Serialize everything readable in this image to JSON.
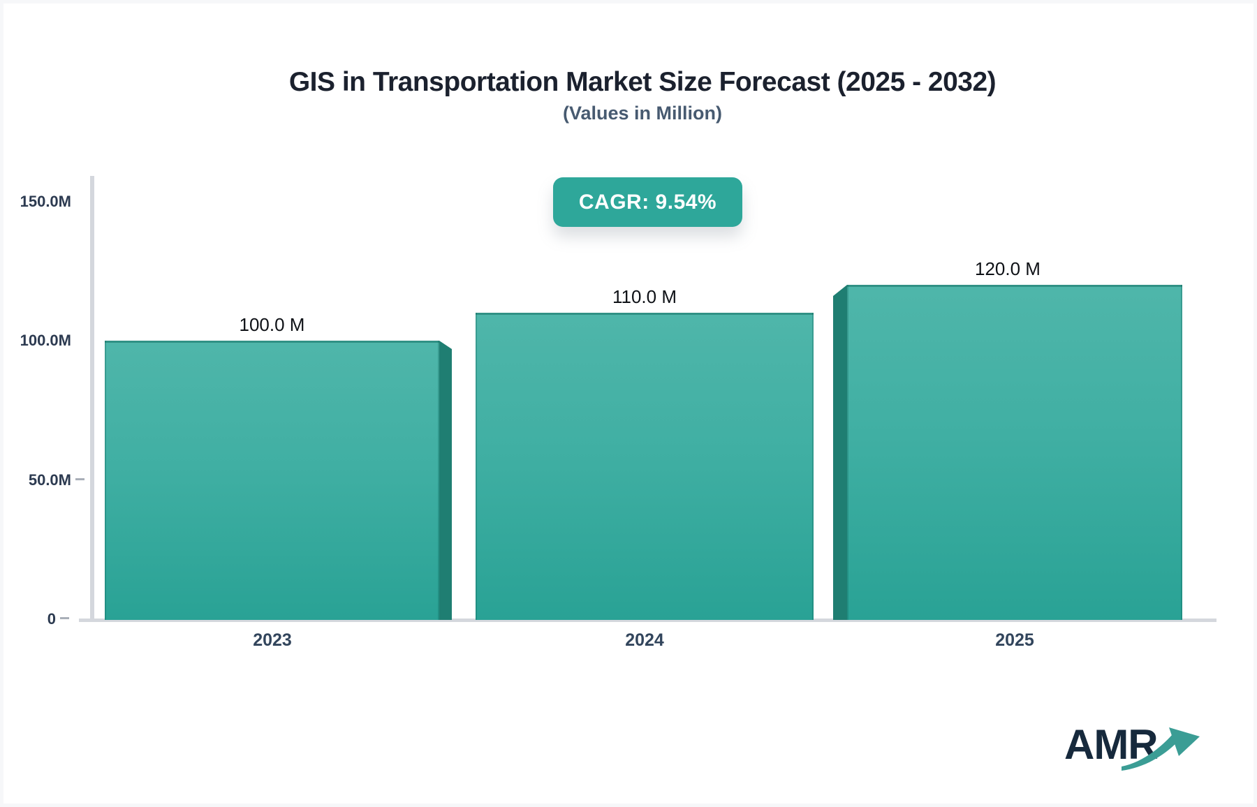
{
  "header": {
    "title": "GIS in Transportation Market Size Forecast (2025 - 2032)",
    "subtitle": "(Values in Million)",
    "cagr_label": "CAGR: 9.54%"
  },
  "logo": {
    "text": "AMR",
    "arrow_icon": "trend-up-arrow"
  },
  "colors": {
    "accent_teal": "#2EA79A",
    "bar_gradient_top": "#4FB6AA",
    "bar_gradient_bottom": "#29A295",
    "bar_side": "#1F7E72",
    "axis_line": "#D4D7DD",
    "tick_dash": "#A9AFB8",
    "title_text": "#1B212E",
    "subtitle_text": "#475A70",
    "label_text": "#0E1116",
    "tick_text": "#2C3A50",
    "xtick_text": "#32455C",
    "logo_navy": "#16293C",
    "logo_arrow": "#3B9D95"
  },
  "chart_data": {
    "type": "bar",
    "title": "GIS in Transportation Market Size Forecast (2025 - 2032)",
    "subtitle": "(Values in Million)",
    "cagr": "9.54%",
    "categories": [
      "2023",
      "2024",
      "2025"
    ],
    "values": [
      100.0,
      110.0,
      120.0
    ],
    "value_unit": "Million",
    "bar_labels": [
      "100.0 M",
      "110.0 M",
      "120.0 M"
    ],
    "y_axis": {
      "range": [
        0,
        150
      ],
      "ticks": [
        {
          "label": "150.0M",
          "value": 150
        },
        {
          "label": "100.0M",
          "value": 100
        },
        {
          "label": "50.0M",
          "value": 50
        },
        {
          "label": "0",
          "value": 0
        }
      ]
    },
    "grid": false,
    "legend": false,
    "bar_style": "3d-teal-gradient"
  }
}
